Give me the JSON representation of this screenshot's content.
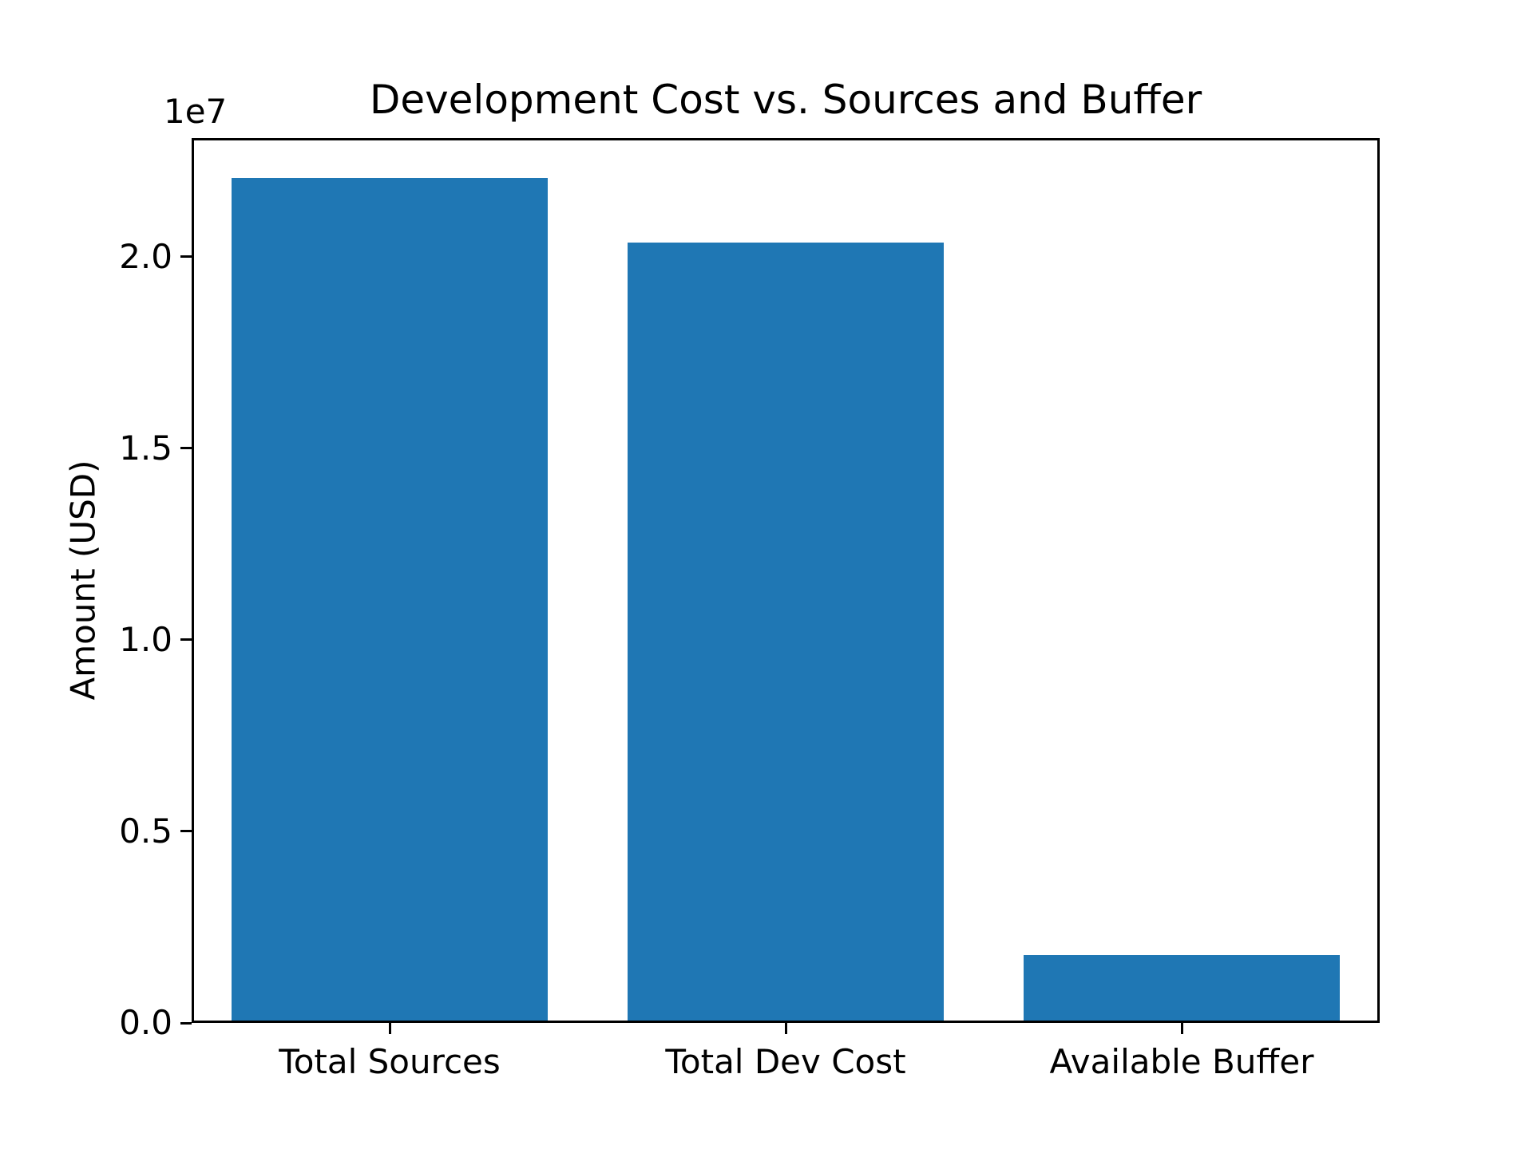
{
  "chart_data": {
    "type": "bar",
    "title": "Development Cost vs. Sources and Buffer",
    "xlabel": "",
    "ylabel": "Amount (USD)",
    "y_offset_label": "1e7",
    "categories": [
      "Total Sources",
      "Total Dev Cost",
      "Available Buffer"
    ],
    "values": [
      22000000,
      20300000,
      1700000
    ],
    "ylim": [
      0,
      23100000
    ],
    "yticks": {
      "values": [
        0,
        5000000,
        10000000,
        15000000,
        20000000
      ],
      "labels": [
        "0.0",
        "0.5",
        "1.0",
        "1.5",
        "2.0"
      ]
    },
    "bar_color": "#1f77b4",
    "bar_width_fraction": 0.8,
    "grid": false,
    "legend_position": "none"
  }
}
